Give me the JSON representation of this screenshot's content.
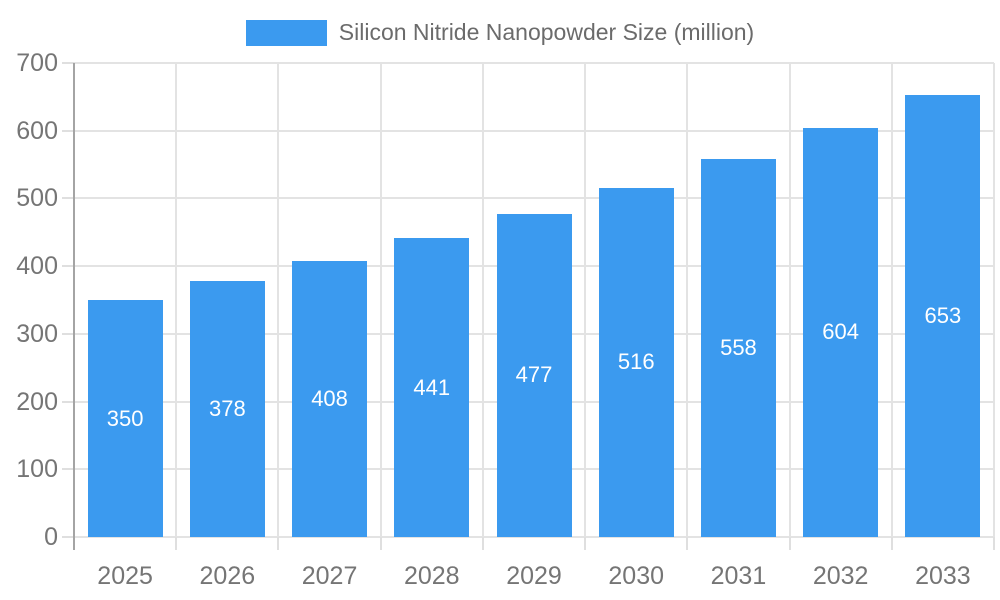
{
  "chart_data": {
    "type": "bar",
    "title": "Silicon Nitride Nanopowder Size (million)",
    "categories": [
      "2025",
      "2026",
      "2027",
      "2028",
      "2029",
      "2030",
      "2031",
      "2032",
      "2033"
    ],
    "series": [
      {
        "name": "Silicon Nitride Nanopowder Size (million)",
        "values": [
          350,
          378,
          408,
          441,
          477,
          516,
          558,
          604,
          653
        ]
      }
    ],
    "value_labels_shown": true,
    "value_label_position": "center-of-bar",
    "xlabel": "",
    "ylabel": "",
    "ylim": [
      0,
      700
    ],
    "yticks": [
      0,
      100,
      200,
      300,
      400,
      500,
      600,
      700
    ],
    "grid": true,
    "legend_position": "top-center",
    "colors": {
      "bar": "#3B9AEF",
      "grid_line": "#E3E3E3",
      "axis_line": "#A4A4A4",
      "tick_mark": "#DFDFDF",
      "tick_label": "#757575",
      "legend_text": "#6B6B6B",
      "value_label": "#FFFFFF",
      "background": "#FFFFFF"
    }
  }
}
